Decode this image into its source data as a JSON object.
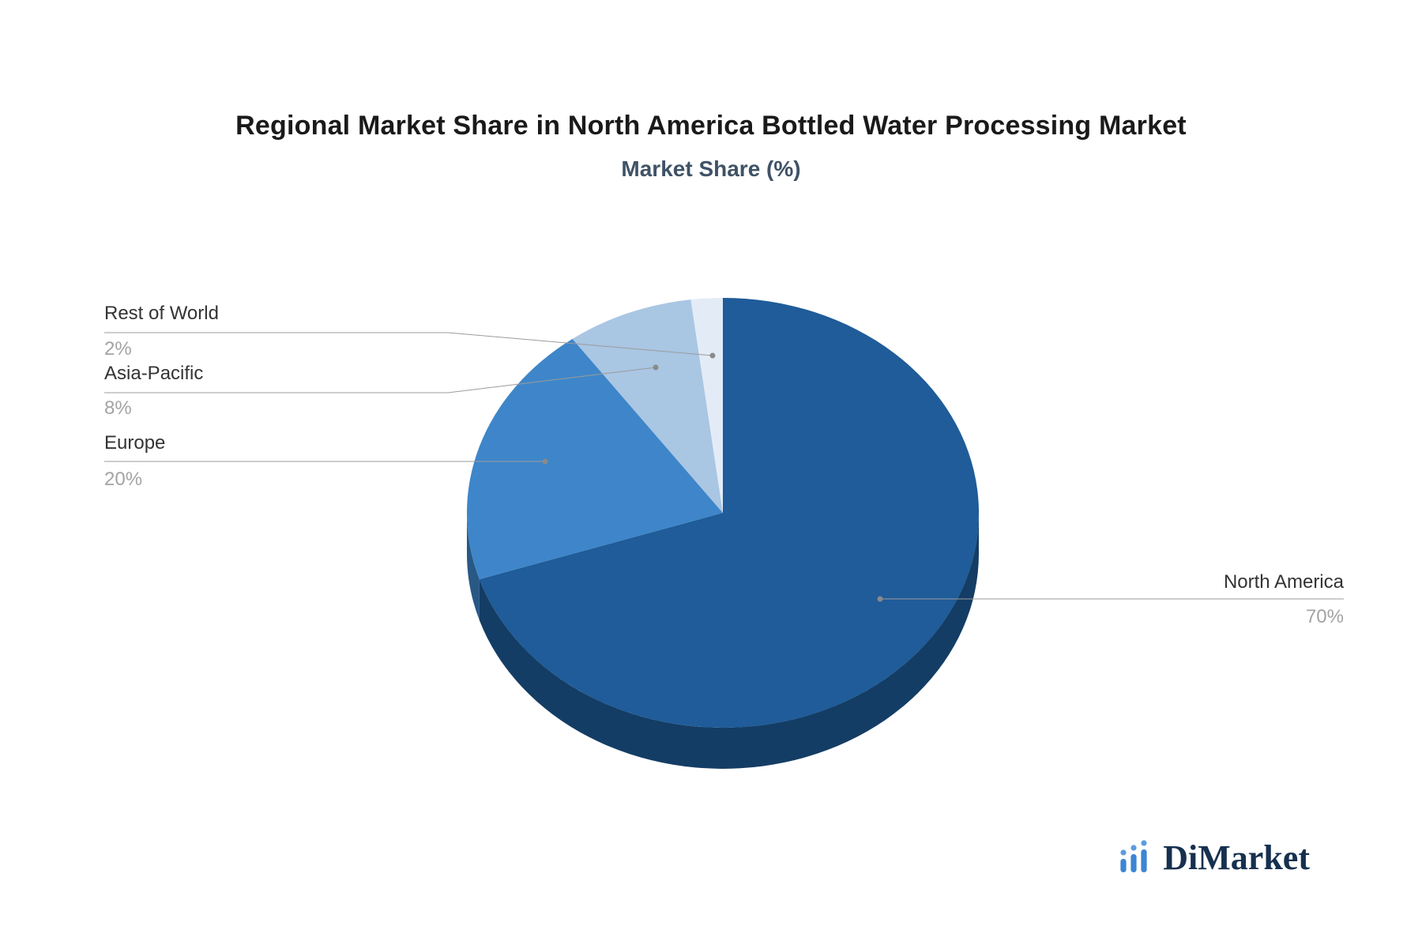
{
  "chart_data": {
    "type": "pie",
    "title": "Regional Market Share in North America Bottled Water Processing Market",
    "subtitle": "Market Share (%)",
    "style": "3d",
    "start_angle": "top",
    "direction": "clockwise",
    "legend_position": "none",
    "unit": "%",
    "slices": [
      {
        "label": "North America",
        "value": 70,
        "display": "70%",
        "color": "#1f5c99"
      },
      {
        "label": "Europe",
        "value": 20,
        "display": "20%",
        "color": "#3e86c9"
      },
      {
        "label": "Asia-Pacific",
        "value": 8,
        "display": "8%",
        "color": "#a9c6e3"
      },
      {
        "label": "Rest of World",
        "value": 2,
        "display": "2%",
        "color": "#e3ecf6"
      }
    ],
    "label_text_color": "#333333",
    "value_text_color": "#a3a3a3",
    "leader_line_color": "#9b9b9b"
  },
  "branding": {
    "logo_text": "DiMarket",
    "logo_icon": "bar-chart-icon",
    "logo_text_color": "#16304f",
    "logo_icon_color": "#3d85d4"
  }
}
